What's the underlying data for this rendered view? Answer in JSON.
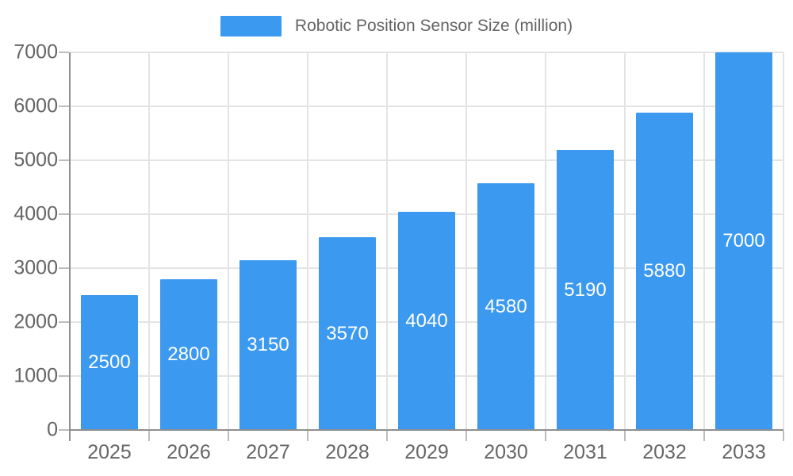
{
  "legend": {
    "label": "Robotic Position Sensor Size (million)"
  },
  "chart_data": {
    "type": "bar",
    "title": "Robotic Position Sensor Size (million)",
    "categories": [
      "2025",
      "2026",
      "2027",
      "2028",
      "2029",
      "2030",
      "2031",
      "2032",
      "2033"
    ],
    "values": [
      2500,
      2800,
      3150,
      3570,
      4040,
      4580,
      5190,
      5880,
      7000
    ],
    "series": [
      {
        "name": "Robotic Position Sensor Size (million)",
        "values": [
          2500,
          2800,
          3150,
          3570,
          4040,
          4580,
          5190,
          5880,
          7000
        ]
      }
    ],
    "xlabel": "",
    "ylabel": "",
    "ylim": [
      0,
      7000
    ],
    "ytick_step": 1000,
    "yticks": [
      0,
      1000,
      2000,
      3000,
      4000,
      5000,
      6000,
      7000
    ],
    "grid": true,
    "legend_position": "top-center",
    "bar_labels_visible": true,
    "bar_label_position": "inside-center",
    "colors": {
      "bar": "#3C99F0",
      "bar_label": "#FFFFFF",
      "axis_line": "#8F8F8F",
      "grid_line": "#E4E4E4",
      "tick": "#BDBDBD",
      "axis_label": "#666666",
      "legend_text": "#646464",
      "background": "#FFFFFF"
    }
  }
}
